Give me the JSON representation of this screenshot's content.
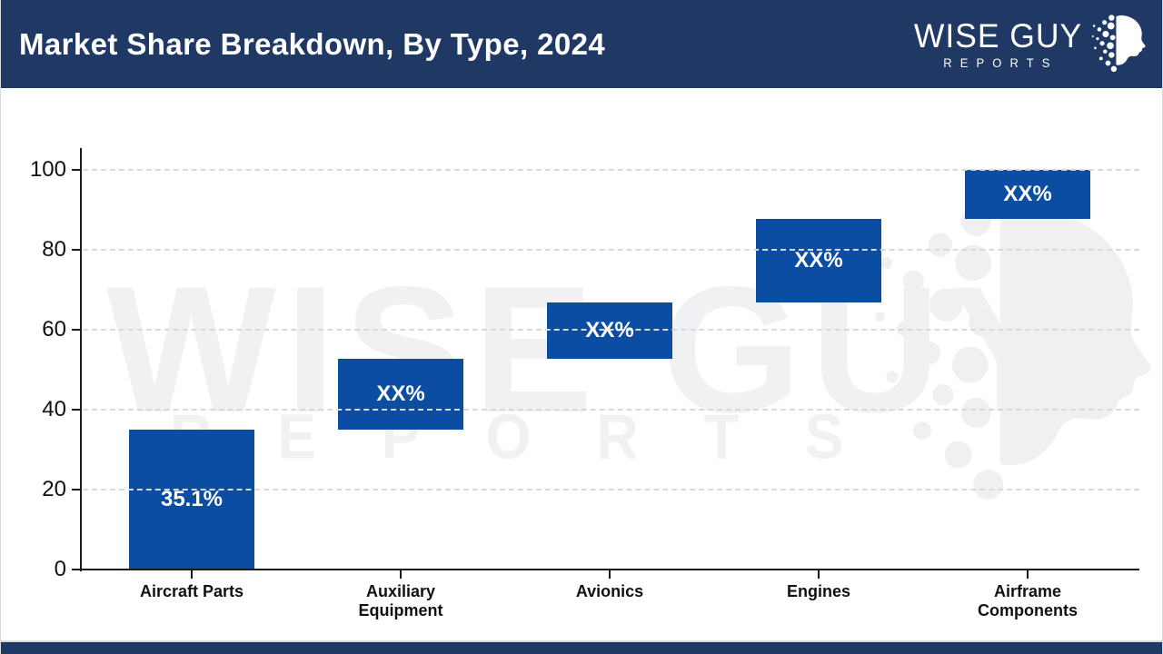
{
  "header": {
    "title": "Market Share Breakdown, By Type, 2024",
    "logo": {
      "wordmark": "WISE GUY",
      "subtext": "REPORTS"
    }
  },
  "watermark": {
    "line1": "WISE GUY",
    "line2": "REPORTS"
  },
  "footer": {},
  "colors": {
    "header_bg": "#1f3864",
    "bar": "#0b4da3",
    "grid": "#d9d9d9",
    "watermark": "#f1f1f3"
  },
  "chart_data": {
    "type": "bar",
    "subtype": "waterfall-stacked-breakdown",
    "title": "Market Share Breakdown, By Type, 2024",
    "categories": [
      "Aircraft Parts",
      "Auxiliary Equipment",
      "Avionics",
      "Engines",
      "Airframe Components"
    ],
    "segments": [
      {
        "category": "Aircraft Parts",
        "label": "35.1%",
        "start": 0,
        "end": 35.1
      },
      {
        "category": "Auxiliary Equipment",
        "label": "XX%",
        "start": 35.1,
        "end": 52.7
      },
      {
        "category": "Avionics",
        "label": "XX%",
        "start": 52.7,
        "end": 66.8
      },
      {
        "category": "Engines",
        "label": "XX%",
        "start": 66.8,
        "end": 87.7
      },
      {
        "category": "Airframe Components",
        "label": "XX%",
        "start": 87.7,
        "end": 100
      }
    ],
    "yticks": [
      0,
      20,
      40,
      60,
      80,
      100
    ],
    "ylim": [
      0,
      105
    ],
    "xlabel": "",
    "ylabel": "",
    "grid": "dashed-horizontal",
    "legend": "none",
    "bar_color": "#0b4da3",
    "bar_label_color": "#ffffff"
  }
}
